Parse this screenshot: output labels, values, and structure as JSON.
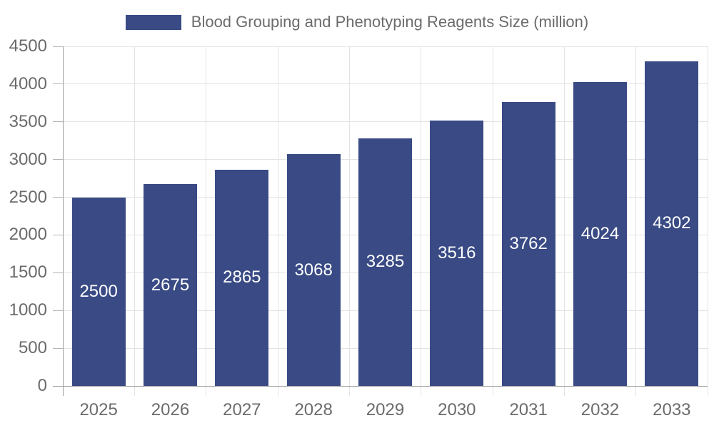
{
  "legend": {
    "label": "Blood Grouping and Phenotyping Reagents Size (million)"
  },
  "chart_data": {
    "type": "bar",
    "title": "Blood Grouping and Phenotyping Reagents Size (million)",
    "categories": [
      "2025",
      "2026",
      "2027",
      "2028",
      "2029",
      "2030",
      "2031",
      "2032",
      "2033"
    ],
    "values": [
      2500,
      2675,
      2865,
      3068,
      3285,
      3516,
      3762,
      4024,
      4302
    ],
    "xlabel": "",
    "ylabel": "",
    "ylim": [
      0,
      4500
    ],
    "ytick_step": 500,
    "yticks": [
      0,
      500,
      1000,
      1500,
      2000,
      2500,
      3000,
      3500,
      4000,
      4500
    ],
    "grid": true,
    "legend_position": "top-center",
    "value_labels": "inside-center",
    "colors": {
      "bar": "#394A85",
      "value_label": "#FFFFFF",
      "axis_text": "#6B6B6B",
      "legend_text": "#6B6B6B",
      "gridline": "#E3E3E3",
      "tick": "#B5B5B5",
      "axis_line": "#9E9E9E",
      "background": "#FFFFFF"
    }
  }
}
